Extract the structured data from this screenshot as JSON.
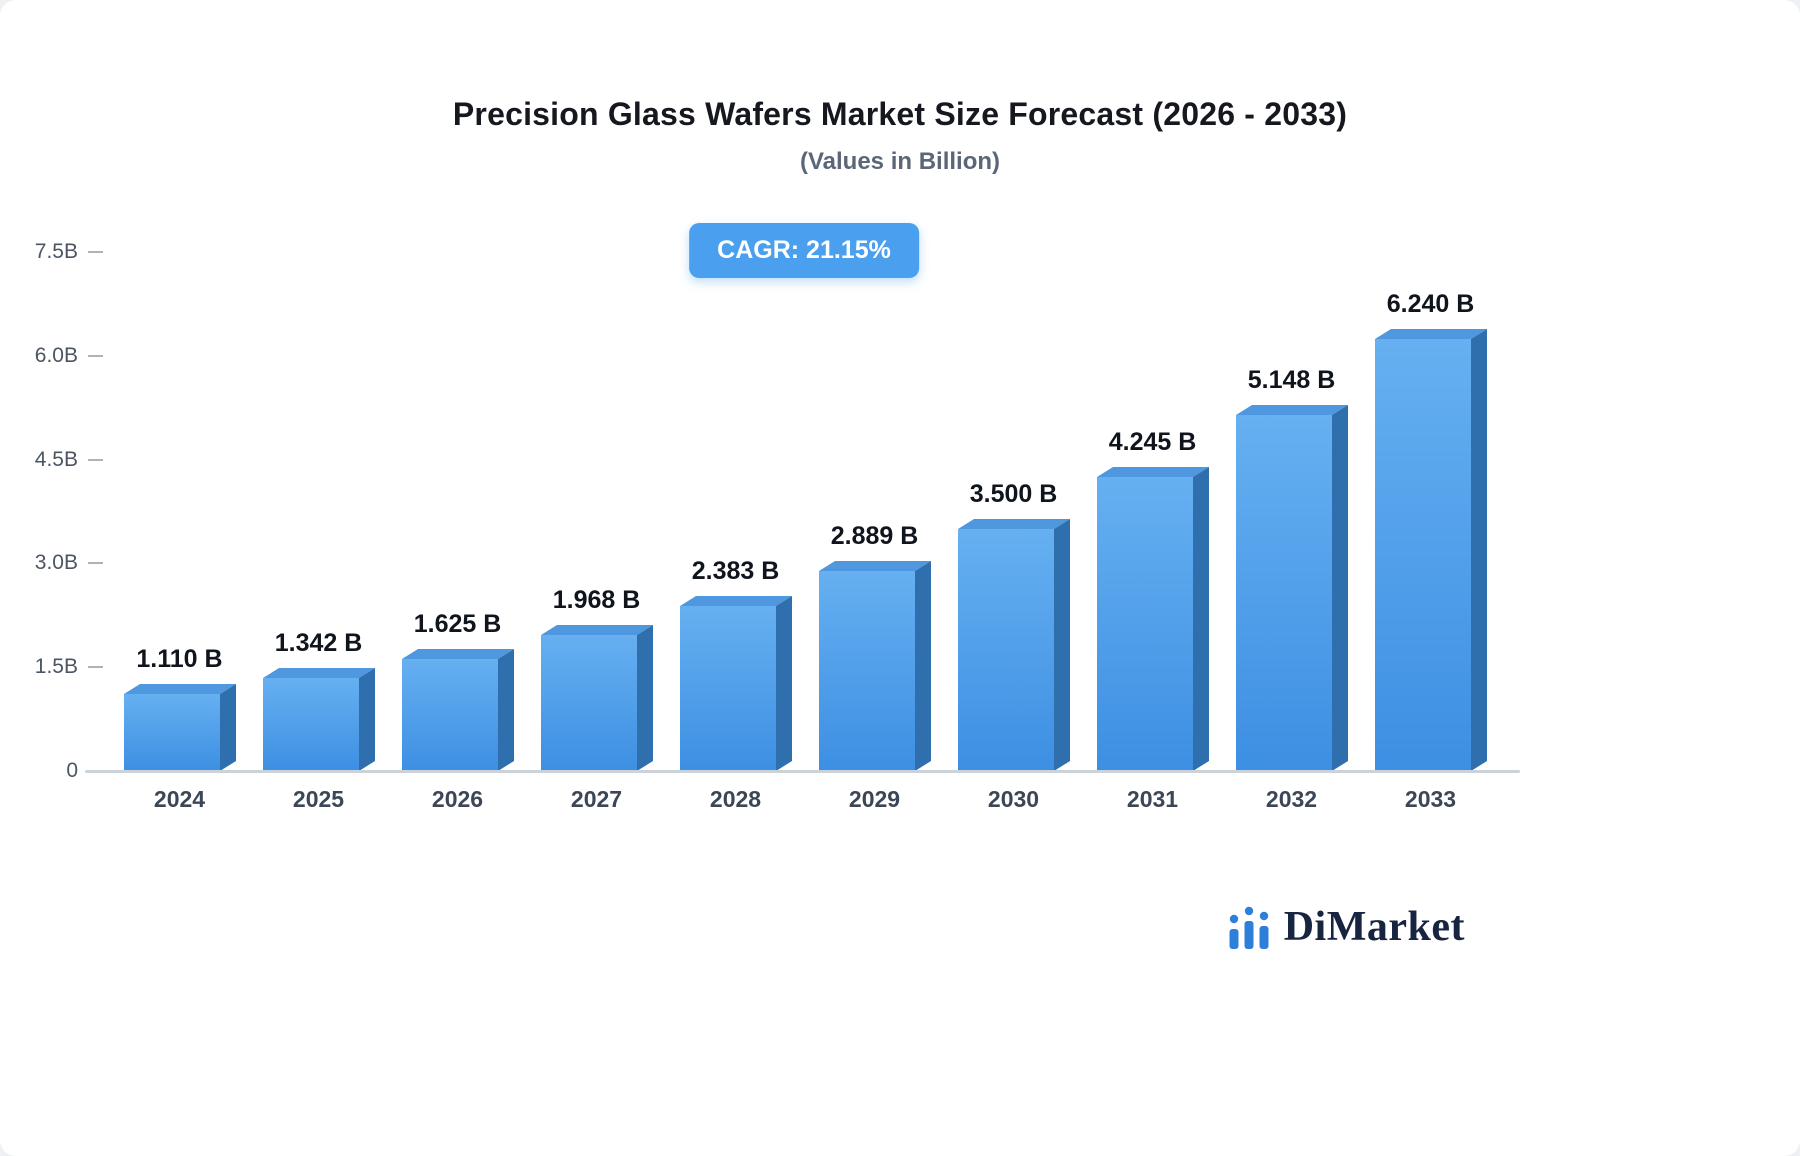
{
  "title": "Precision Glass Wafers Market Size Forecast (2026 - 2033)",
  "subtitle": "(Values in Billion)",
  "badge": {
    "label": "CAGR: 21.15%",
    "bg": "#4aa0ef",
    "fg": "#ffffff"
  },
  "logo": {
    "text": "DiMarket",
    "icon": "bar-chart-icon",
    "icon_color": "#2e7fd9",
    "text_color": "#182540"
  },
  "chart_data": {
    "type": "bar",
    "title": "Precision Glass Wafers Market Size Forecast (2026 - 2033)",
    "subtitle": "(Values in Billion)",
    "categories": [
      "2024",
      "2025",
      "2026",
      "2027",
      "2028",
      "2029",
      "2030",
      "2031",
      "2032",
      "2033"
    ],
    "values": [
      1.11,
      1.342,
      1.625,
      1.968,
      2.383,
      2.889,
      3.5,
      4.245,
      5.148,
      6.24
    ],
    "value_labels": [
      "1.110 B",
      "1.342 B",
      "1.625 B",
      "1.968 B",
      "2.383 B",
      "2.889 B",
      "3.500 B",
      "4.245 B",
      "5.148 B",
      "6.240 B"
    ],
    "unit": "Billion",
    "xlabel": "",
    "ylabel": "",
    "ylim": [
      0,
      7.5
    ],
    "yticks": [
      0,
      1.5,
      3.0,
      4.5,
      6.0,
      7.5
    ],
    "ytick_labels": [
      "0",
      "1.5B",
      "3.0B",
      "4.5B",
      "6.0B",
      "7.5B"
    ],
    "grid": false,
    "legend": false,
    "bar_style": "3d",
    "colors": {
      "front_top": "#66b0f1",
      "front_bottom": "#3d8fe3",
      "side": "#2f6fae",
      "top": "#4f97de"
    }
  }
}
